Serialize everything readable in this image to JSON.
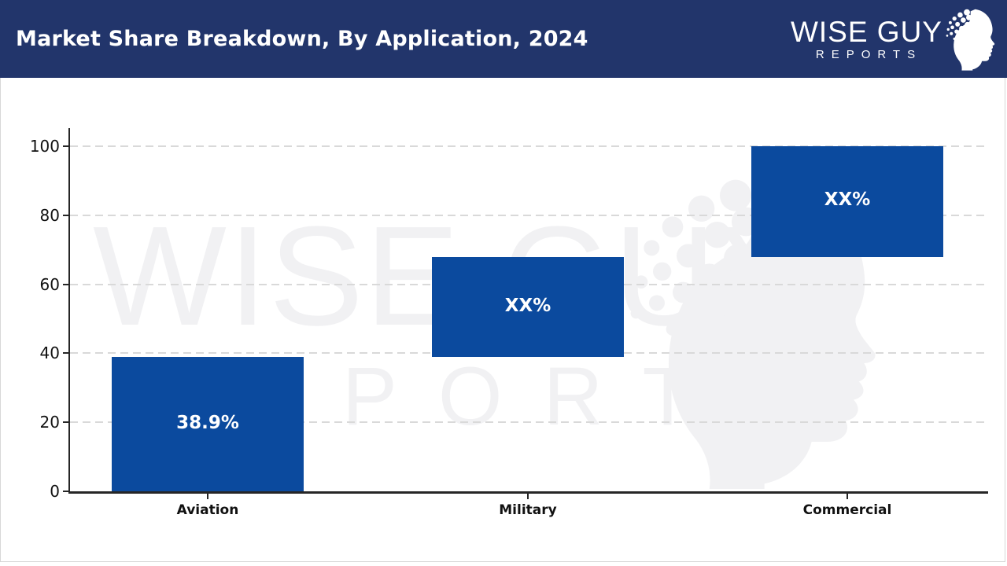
{
  "header": {
    "title": "Market Share Breakdown, By Application, 2024",
    "logo": {
      "line1": "WISE GUY",
      "line2": "REPORTS",
      "icon": "face-profile-dots-icon"
    }
  },
  "watermark": {
    "line1": "WISE GUY",
    "line2": "REPORTS",
    "icon": "face-profile-dots-icon"
  },
  "chart_data": {
    "type": "bar",
    "subtype": "floating-waterfall",
    "title": "Market Share Breakdown, By Application, 2024",
    "categories": [
      "Aviation",
      "Military",
      "Commercial"
    ],
    "series": [
      {
        "name": "Market Share (%)",
        "segments": [
          {
            "category": "Aviation",
            "start": 0,
            "end": 38.9,
            "label": "38.9%"
          },
          {
            "category": "Military",
            "start": 38.9,
            "end": 67.9,
            "label": "XX%"
          },
          {
            "category": "Commercial",
            "start": 67.9,
            "end": 100,
            "label": "XX%"
          }
        ]
      }
    ],
    "xlabel": "",
    "ylabel": "",
    "ylim": [
      0,
      100
    ],
    "yticks": [
      0,
      20,
      40,
      60,
      80,
      100
    ],
    "grid": "horizontal-dashed",
    "legend": "none",
    "bar_color": "#0B4A9E",
    "bar_label_color": "#FFFFFF"
  },
  "colors": {
    "header_bg": "#22356B",
    "header_text": "#FFFFFF",
    "bar": "#0B4A9E",
    "watermark": "#F1F1F3",
    "gridline": "#D9D9D9",
    "axis": "#262626",
    "tick_text": "#111111"
  }
}
